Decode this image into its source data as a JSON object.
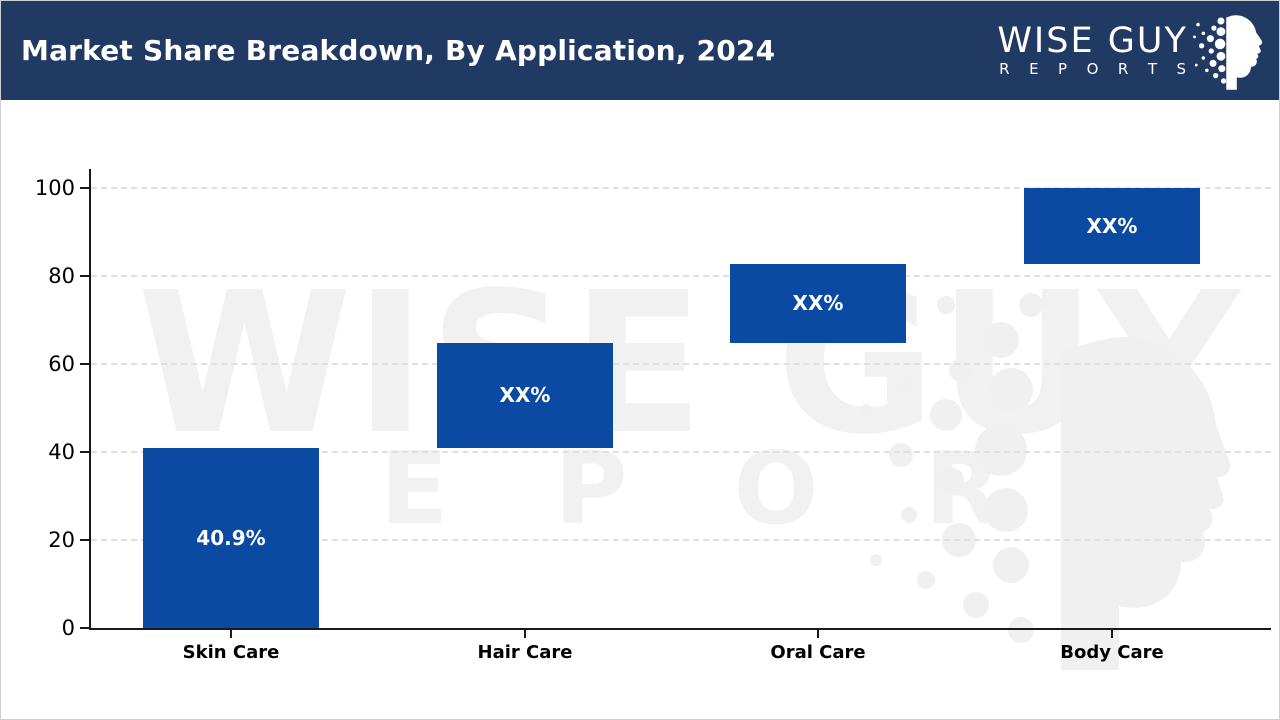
{
  "header": {
    "title": "Market Share Breakdown, By Application, 2024",
    "logo_line1": "WISE GUY",
    "logo_line2": "REPORTS",
    "bg_color": "#213A63"
  },
  "watermark": {
    "line1": "WISE GUY",
    "line2": "REPORTS"
  },
  "chart_data": {
    "type": "bar",
    "subtype": "waterfall",
    "title": "Market Share Breakdown, By Application, 2024",
    "categories": [
      "Skin Care",
      "Hair Care",
      "Oral Care",
      "Body Care"
    ],
    "segments": [
      {
        "category": "Skin Care",
        "start": 0,
        "end": 40.9,
        "label": "40.9%"
      },
      {
        "category": "Hair Care",
        "start": 40.9,
        "end": 64.8,
        "label": "XX%"
      },
      {
        "category": "Oral Care",
        "start": 64.8,
        "end": 82.7,
        "label": "XX%"
      },
      {
        "category": "Body Care",
        "start": 82.7,
        "end": 100,
        "label": "XX%"
      }
    ],
    "ylim": [
      0,
      100
    ],
    "yticks": [
      0,
      20,
      40,
      60,
      80,
      100
    ],
    "xlabel": "",
    "ylabel": "",
    "bar_color": "#0B4AA2",
    "grid": "horizontal-dashed",
    "legend": "none"
  }
}
